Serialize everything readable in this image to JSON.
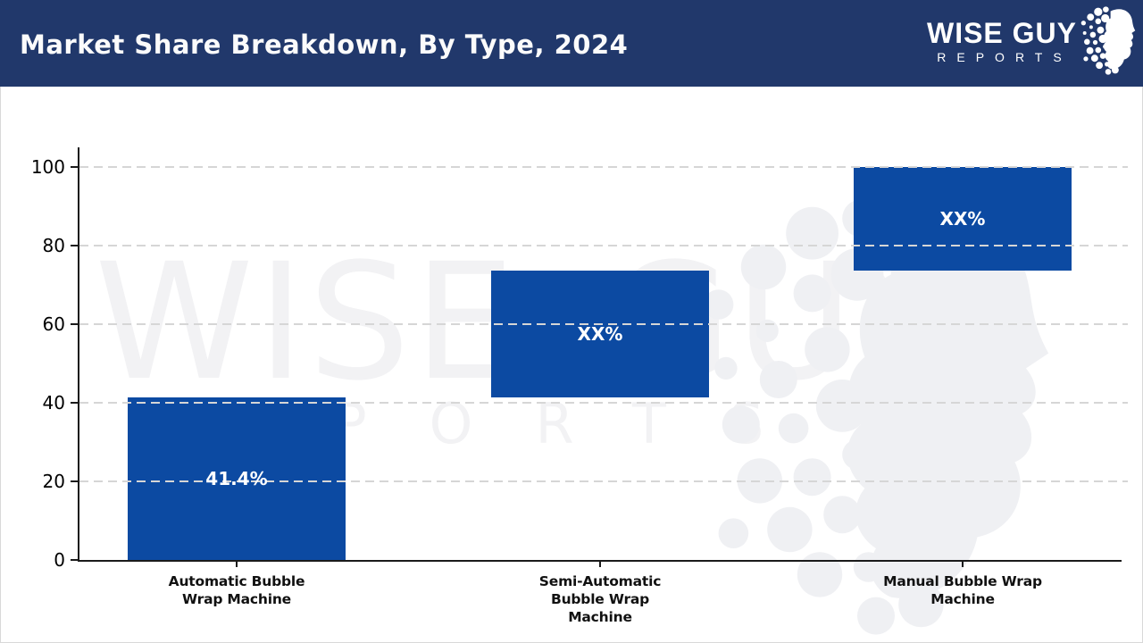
{
  "header": {
    "title": "Market Share Breakdown, By Type, 2024",
    "bg_color": "#21386b",
    "logo": {
      "brand": "WISE GUY",
      "sub": "REPORTS",
      "head_icon": "dotted-face-profile"
    }
  },
  "watermark": {
    "brand": "WISE GUY",
    "sub": "REPORTS",
    "color": "#f2f2f4"
  },
  "chart_data": {
    "type": "bar",
    "variant": "waterfall",
    "title": "Market Share Breakdown, By Type, 2024",
    "xlabel": "",
    "ylabel": "",
    "ylim": [
      0,
      100
    ],
    "yticks": [
      0,
      20,
      40,
      60,
      80,
      100
    ],
    "grid": true,
    "grid_style": "dashed",
    "legend_position": "none",
    "categories": [
      "Automatic Bubble Wrap Machine",
      "Semi-Automatic Bubble Wrap Machine",
      "Manual Bubble Wrap Machine"
    ],
    "category_lines": [
      [
        "Automatic Bubble",
        "Wrap Machine"
      ],
      [
        "Semi-Automatic",
        "Bubble Wrap",
        "Machine"
      ],
      [
        "Manual Bubble Wrap",
        "Machine"
      ]
    ],
    "segments": [
      {
        "category": "Automatic Bubble Wrap Machine",
        "start": 0,
        "end": 41.4,
        "label": "41.4%"
      },
      {
        "category": "Semi-Automatic Bubble Wrap Machine",
        "start": 41.4,
        "end": 73.6,
        "label": "XX%"
      },
      {
        "category": "Manual Bubble Wrap Machine",
        "start": 73.6,
        "end": 100,
        "label": "XX%"
      }
    ],
    "colors": {
      "bar": "#0c4aa2",
      "bar_label": "#ffffff",
      "grid": "#d6d6d6",
      "axis": "#1a1a1a",
      "tick_label": "#000000",
      "category_label": "#111111"
    }
  }
}
